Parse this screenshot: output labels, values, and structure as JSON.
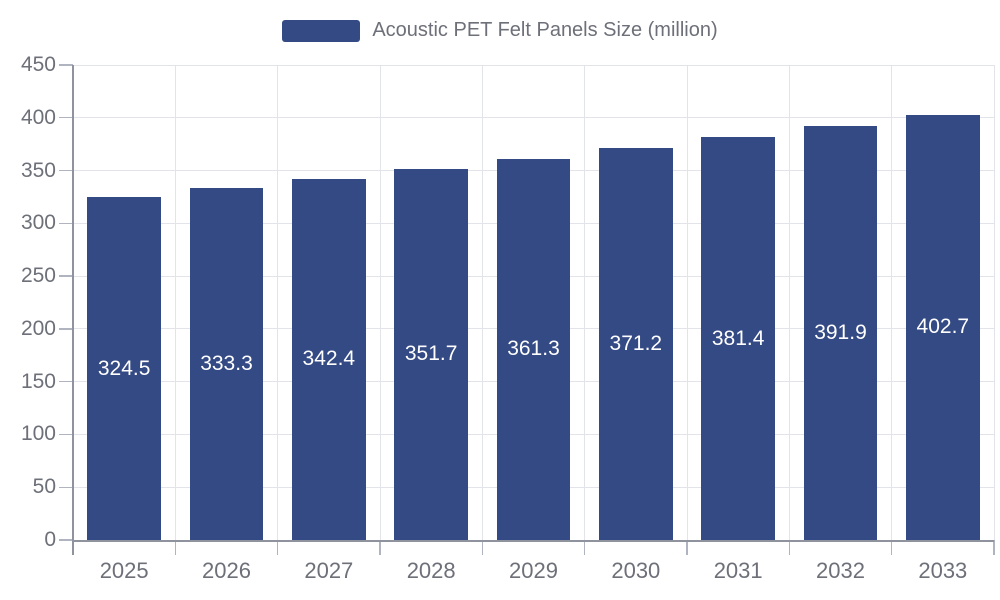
{
  "legend": {
    "label": "Acoustic PET Felt Panels Size (million)"
  },
  "chart_data": {
    "type": "bar",
    "title": "Acoustic PET Felt Panels Size (million)",
    "categories": [
      "2025",
      "2026",
      "2027",
      "2028",
      "2029",
      "2030",
      "2031",
      "2032",
      "2033"
    ],
    "values": [
      324.5,
      333.3,
      342.4,
      351.7,
      361.3,
      371.2,
      381.4,
      391.9,
      402.7
    ],
    "value_labels": [
      "324.5",
      "333.3",
      "342.4",
      "351.7",
      "361.3",
      "371.2",
      "381.4",
      "391.9",
      "402.7"
    ],
    "xlabel": "",
    "ylabel": "",
    "ylim": [
      0,
      450
    ],
    "ytick_step": 50,
    "ytick_labels": [
      "0",
      "50",
      "100",
      "150",
      "200",
      "250",
      "300",
      "350",
      "400",
      "450"
    ],
    "grid": true,
    "legend_position": "top-center",
    "bar_color": "#344a84",
    "value_label_color": "#ffffff",
    "axis_text_color": "#6e7079",
    "grid_color": "#e2e4ea",
    "axis_line_color": "#8f939d",
    "tick_color": "#b0b4c0"
  }
}
